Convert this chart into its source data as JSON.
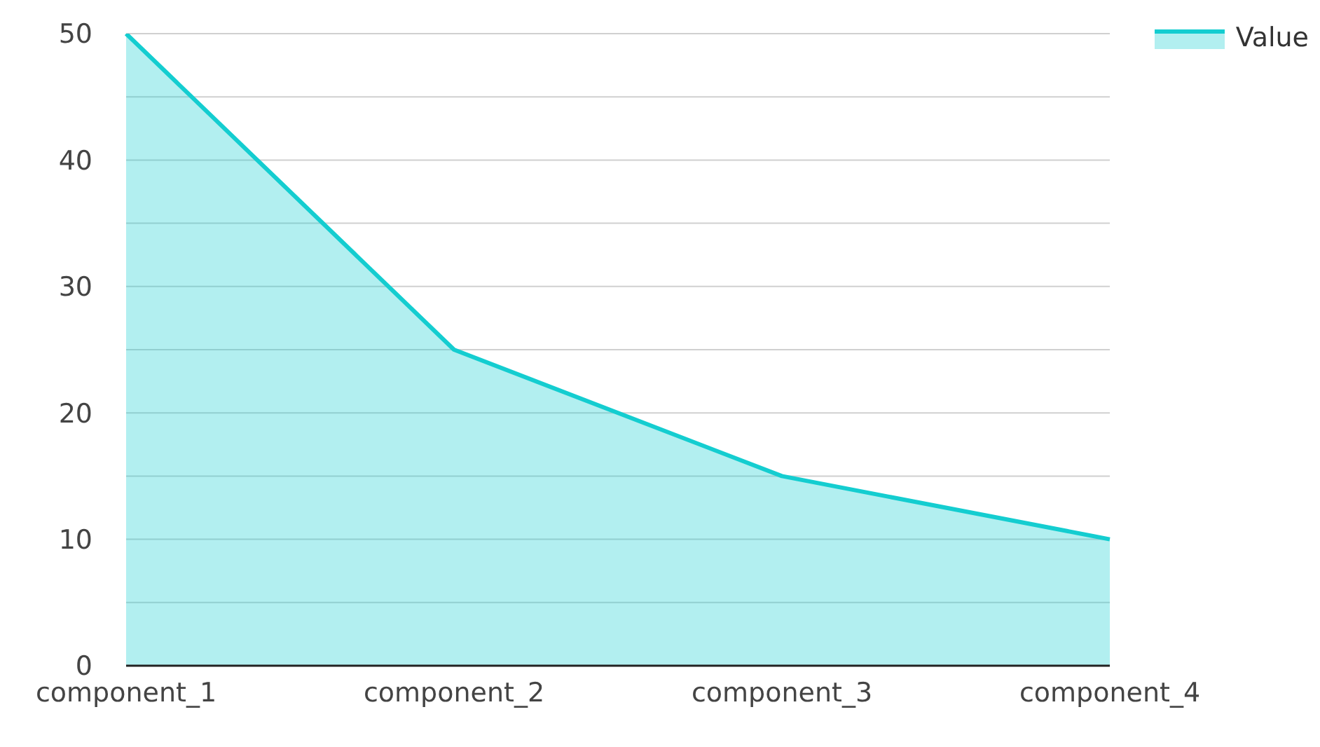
{
  "chart_data": {
    "type": "area",
    "categories": [
      "component_1",
      "component_2",
      "component_3",
      "component_4"
    ],
    "series": [
      {
        "name": "Value",
        "color": "#14cdd0",
        "values": [
          50,
          25,
          15,
          10
        ]
      }
    ],
    "ylim": [
      0,
      50
    ],
    "yticks": [
      0,
      {
        "value": 5,
        "label": null
      },
      10,
      {
        "value": 15,
        "label": null
      },
      20,
      {
        "value": 25,
        "label": null
      },
      30,
      {
        "value": 35,
        "label": null
      },
      40,
      {
        "value": 45,
        "label": null
      },
      50
    ],
    "grid": "y",
    "legend": "top right"
  }
}
